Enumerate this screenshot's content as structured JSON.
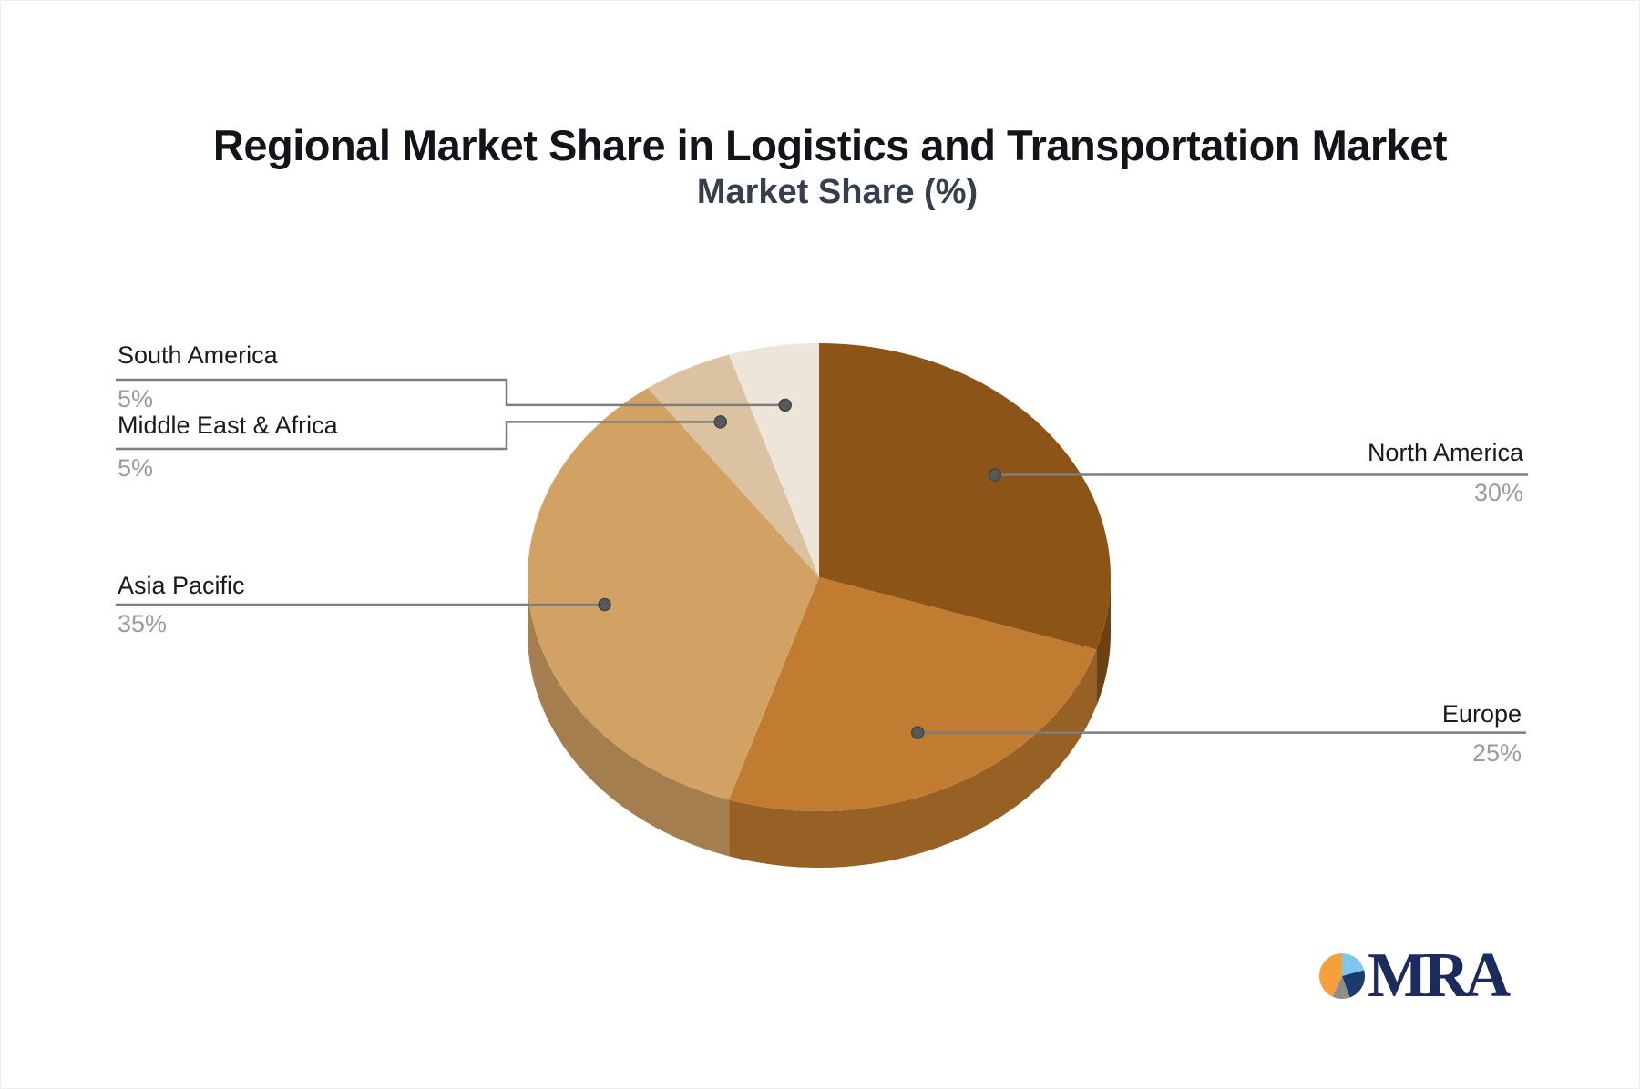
{
  "page": {
    "title": "Regional Market Share in Logistics and Transportation Market",
    "subtitle": "Market Share (%)"
  },
  "chart_data": {
    "type": "pie",
    "title": "Regional Market Share in Logistics and Transportation Market",
    "value_label": "Market Share (%)",
    "unit": "%",
    "effect": "3d",
    "start_angle_deg": 0,
    "direction": "clockwise",
    "legend_position": "callout-labels",
    "slices": [
      {
        "label": "North America",
        "value": 30,
        "display": "30%",
        "color": "#8C5517"
      },
      {
        "label": "Europe",
        "value": 25,
        "display": "25%",
        "color": "#C17C31"
      },
      {
        "label": "Asia Pacific",
        "value": 35,
        "display": "35%",
        "color": "#D2A264"
      },
      {
        "label": "Middle East & Africa",
        "value": 5,
        "display": "5%",
        "color": "#DBC3A2"
      },
      {
        "label": "South America",
        "value": 5,
        "display": "5%",
        "color": "#EDE5DA"
      }
    ]
  },
  "styles": {
    "title_color": "#111418",
    "subtitle_color": "#36404D",
    "label_color": "#1A1A1A",
    "value_color": "#9B9B9B",
    "leader_line_color": "#7E7E7E",
    "leader_dot_color": "#58585A"
  },
  "logo": {
    "text": "MRA",
    "text_color": "#1B2B5C",
    "pie_segments": [
      {
        "name": "light-blue",
        "color": "#7EC5F0",
        "from": 0,
        "to": 75
      },
      {
        "name": "navy",
        "color": "#1C3A6E",
        "from": 75,
        "to": 160
      },
      {
        "name": "gray",
        "color": "#8E8E86",
        "from": 160,
        "to": 205
      },
      {
        "name": "orange",
        "color": "#F5A03C",
        "from": 205,
        "to": 360
      }
    ]
  }
}
